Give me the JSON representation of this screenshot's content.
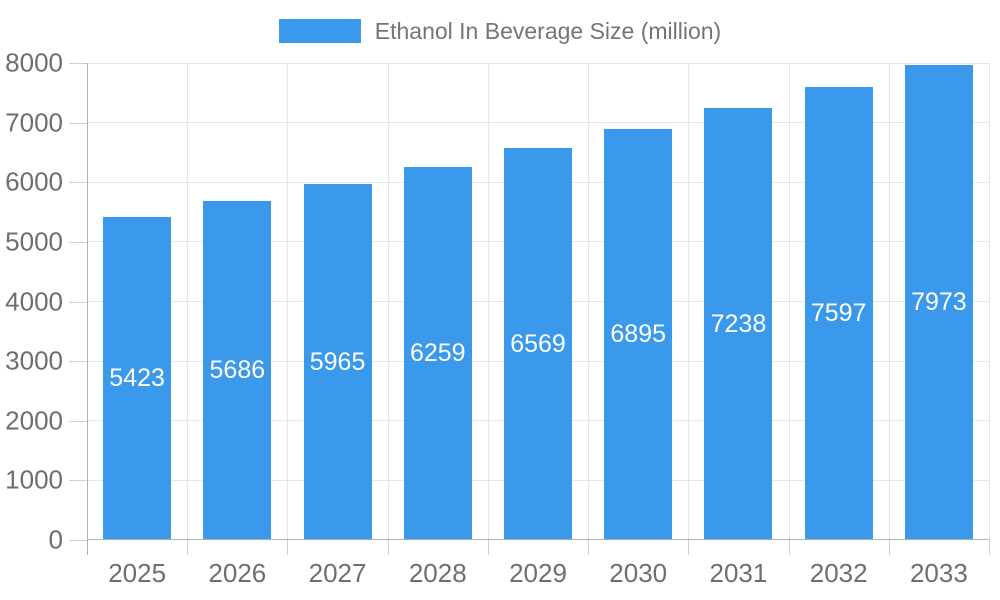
{
  "chart_data": {
    "type": "bar",
    "title": "Ethanol In Beverage Size (million)",
    "legend": {
      "label": "Ethanol In Beverage Size (million)",
      "position": "top"
    },
    "categories": [
      "2025",
      "2026",
      "2027",
      "2028",
      "2029",
      "2030",
      "2031",
      "2032",
      "2033"
    ],
    "values": [
      5423,
      5686,
      5965,
      6259,
      6569,
      6895,
      7238,
      7597,
      7973
    ],
    "y_ticks": [
      0,
      1000,
      2000,
      3000,
      4000,
      5000,
      6000,
      7000,
      8000
    ],
    "ylim": [
      0,
      8000
    ],
    "xlabel": "",
    "ylabel": "",
    "grid": true,
    "bar_color": "#3B99EC",
    "value_label_color": "#ffffff"
  }
}
